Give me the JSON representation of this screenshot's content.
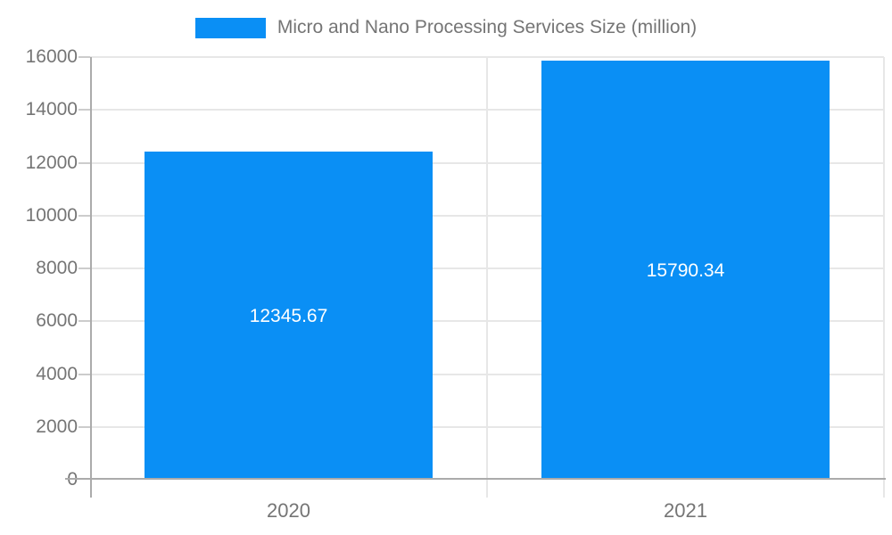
{
  "legend": {
    "label": "Micro and Nano Processing Services Size (million)"
  },
  "chart_data": {
    "type": "bar",
    "title": "Micro and Nano Processing Services Size (million)",
    "categories": [
      "2020",
      "2021"
    ],
    "series": [
      {
        "name": "Micro and Nano Processing Services Size (million)",
        "values": [
          12345.67,
          15790.34
        ]
      }
    ],
    "value_labels": [
      "12345.67",
      "15790.34"
    ],
    "xlabel": "",
    "ylabel": "",
    "ylim": [
      0,
      16000
    ],
    "ytick_step": 2000,
    "yticks": [
      0,
      2000,
      4000,
      6000,
      8000,
      10000,
      12000,
      14000,
      16000
    ],
    "grid": true,
    "legend_position": "top"
  },
  "colors": {
    "bar": "#0A8FF5",
    "axis": "#ababab",
    "grid": "#e7e7e7",
    "tick": "#cccccc",
    "text": "#757575",
    "value_text": "#ffffff",
    "background": "#ffffff"
  }
}
